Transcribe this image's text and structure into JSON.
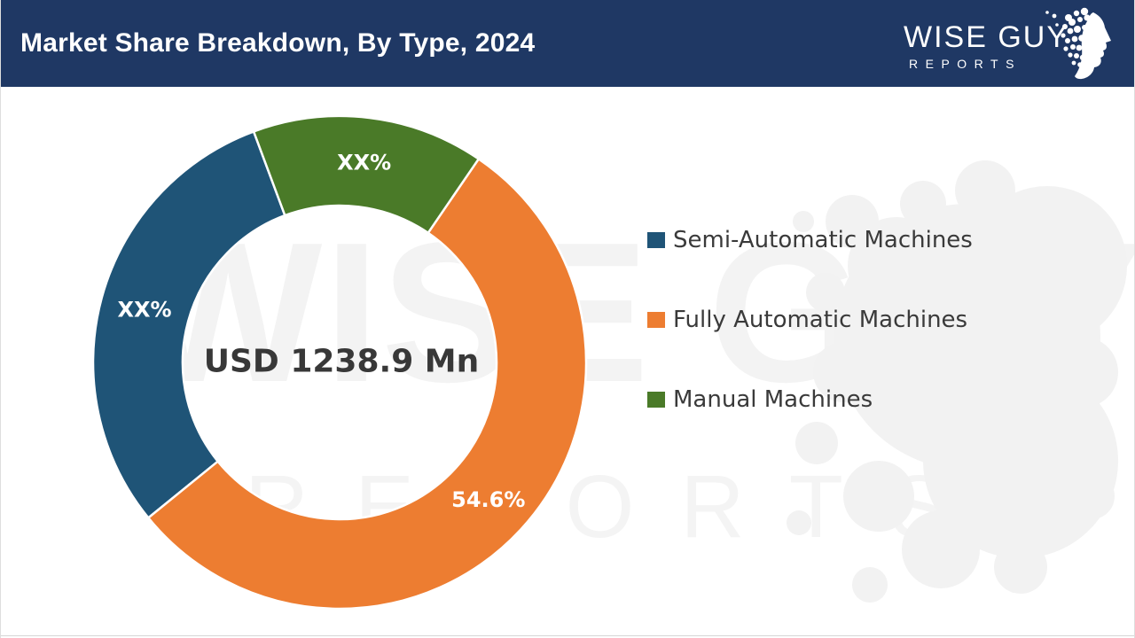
{
  "header": {
    "title": "Market Share Breakdown, By Type, 2024",
    "logo": {
      "line1": "WISE GUY",
      "line2": "REPORTS"
    }
  },
  "watermark": {
    "line1": "WISE GUY",
    "line2": "REPORTS"
  },
  "chart_data": {
    "type": "donut",
    "title": "Market Share Breakdown, By Type, 2024",
    "center_label": "USD 1238.9 Mn",
    "start_angle_deg": 110.4,
    "direction": "counterclockwise",
    "legend_position": "right",
    "series": [
      {
        "name": "Semi-Automatic Machines",
        "value_pct": 30.2,
        "label": "XX%",
        "color": "#1F5477"
      },
      {
        "name": "Fully Automatic Machines",
        "value_pct": 54.6,
        "label": "54.6%",
        "color": "#ED7D31"
      },
      {
        "name": "Manual Machines",
        "value_pct": 15.2,
        "label": "XX%",
        "color": "#4A7A28"
      }
    ]
  },
  "colors": {
    "header_bg": "#1F3864",
    "center_text": "#383838",
    "legend_text": "#3A3A3A",
    "watermark": "#F3F3F3"
  }
}
